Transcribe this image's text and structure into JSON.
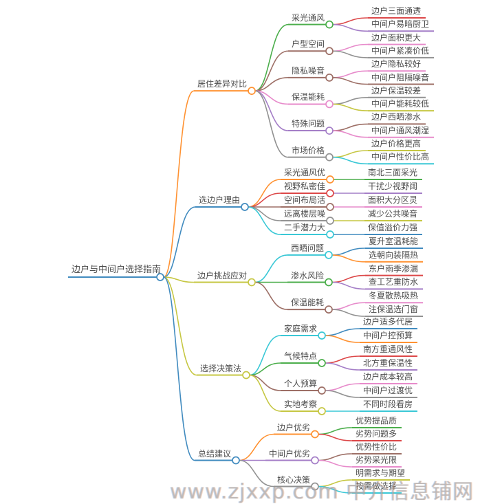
{
  "watermark": {
    "text": "www.zjxxp.com 中介信息铺网"
  },
  "palette": {
    "blue": "#418bbf",
    "orange": "#ff9232",
    "green": "#4bae4b",
    "red": "#dc4748",
    "purple": "#a47ec7",
    "brown": "#9d6f66",
    "pink": "#e78bcb",
    "gray": "#929292",
    "olive": "#c6c743",
    "cyan": "#3ac8d6"
  },
  "text_color": "#4c4c4c",
  "tree": {
    "label": "边户与中间户选择指南",
    "color": "blue",
    "children": [
      {
        "label": "居住差异对比",
        "color": "orange",
        "children": [
          {
            "label": "采光通风",
            "color": "green",
            "children": [
              {
                "label": "边户三面通透",
                "color": "red"
              },
              {
                "label": "中间户易暗厨卫",
                "color": "purple"
              }
            ]
          },
          {
            "label": "户型空间",
            "color": "brown",
            "children": [
              {
                "label": "边户面积更大",
                "color": "pink"
              },
              {
                "label": "中间户紧凑价低",
                "color": "gray"
              }
            ]
          },
          {
            "label": "隐私噪音",
            "color": "brown",
            "children": [
              {
                "label": "边户隐私较好",
                "color": "pink"
              },
              {
                "label": "中间户阻隔噪音",
                "color": "brown"
              }
            ]
          },
          {
            "label": "保温能耗",
            "color": "pink",
            "children": [
              {
                "label": "边户保温较差",
                "color": "gray"
              },
              {
                "label": "中间户能耗较低",
                "color": "olive"
              }
            ]
          },
          {
            "label": "特殊问题",
            "color": "purple",
            "children": [
              {
                "label": "边户西晒渗水",
                "color": "brown"
              },
              {
                "label": "中间户通风潮湿",
                "color": "pink"
              }
            ]
          },
          {
            "label": "市场价格",
            "color": "gray",
            "children": [
              {
                "label": "边户价格更高",
                "color": "olive"
              },
              {
                "label": "中间户性价比高",
                "color": "cyan"
              }
            ]
          }
        ]
      },
      {
        "label": "选边户理由",
        "color": "blue",
        "children": [
          {
            "label": "采光通风优",
            "color": "orange",
            "children": [
              {
                "label": "南北三面采光",
                "color": "green"
              }
            ]
          },
          {
            "label": "视野私密佳",
            "color": "red",
            "children": [
              {
                "label": "干扰少视野阔",
                "color": "purple"
              }
            ]
          },
          {
            "label": "空间布局活",
            "color": "brown",
            "children": [
              {
                "label": "面积大分区灵",
                "color": "pink"
              }
            ]
          },
          {
            "label": "远离楼层噪",
            "color": "gray",
            "children": [
              {
                "label": "减少公共噪音",
                "color": "olive"
              }
            ]
          },
          {
            "label": "二手潜力大",
            "color": "cyan",
            "children": [
              {
                "label": "保值溢价力强",
                "color": "blue"
              }
            ]
          }
        ]
      },
      {
        "label": "边户挑战应对",
        "color": "olive",
        "children": [
          {
            "label": "西晒问题",
            "color": "cyan",
            "children": [
              {
                "label": "夏升室温耗能",
                "color": "blue"
              },
              {
                "label": "选朝向装隔热",
                "color": "orange"
              }
            ]
          },
          {
            "label": "渗水风险",
            "color": "green",
            "children": [
              {
                "label": "东户雨季渗漏",
                "color": "red"
              },
              {
                "label": "查工艺重防水",
                "color": "purple"
              }
            ]
          },
          {
            "label": "保温能耗",
            "color": "brown",
            "children": [
              {
                "label": "冬夏散热吸热",
                "color": "pink"
              },
              {
                "label": "注保温选门窗",
                "color": "gray"
              }
            ]
          }
        ]
      },
      {
        "label": "选择决策法",
        "color": "olive",
        "children": [
          {
            "label": "家庭需求",
            "color": "cyan",
            "children": [
              {
                "label": "边户适多代居",
                "color": "blue"
              },
              {
                "label": "中间户控预算",
                "color": "orange"
              }
            ]
          },
          {
            "label": "气候特点",
            "color": "green",
            "children": [
              {
                "label": "南方重通风性",
                "color": "red"
              },
              {
                "label": "北方重保温性",
                "color": "purple"
              }
            ]
          },
          {
            "label": "个人预算",
            "color": "brown",
            "children": [
              {
                "label": "边户成本较高",
                "color": "pink"
              },
              {
                "label": "中间户过渡优",
                "color": "gray"
              }
            ]
          },
          {
            "label": "实地考察",
            "color": "olive",
            "children": [
              {
                "label": "不同时段看房",
                "color": "cyan"
              }
            ]
          }
        ]
      },
      {
        "label": "总结建议",
        "color": "blue",
        "children": [
          {
            "label": "边户优劣",
            "color": "orange",
            "children": [
              {
                "label": "优势提品质",
                "color": "green"
              },
              {
                "label": "劣势问题多",
                "color": "red"
              }
            ]
          },
          {
            "label": "中间户优劣",
            "color": "purple",
            "children": [
              {
                "label": "优势性价比",
                "color": "brown"
              },
              {
                "label": "劣势采光限",
                "color": "pink"
              }
            ]
          },
          {
            "label": "核心决策",
            "color": "gray",
            "children": [
              {
                "label": "明需求与期望",
                "color": "olive"
              },
              {
                "label": "按需做选择",
                "color": "cyan"
              }
            ]
          }
        ]
      }
    ]
  }
}
